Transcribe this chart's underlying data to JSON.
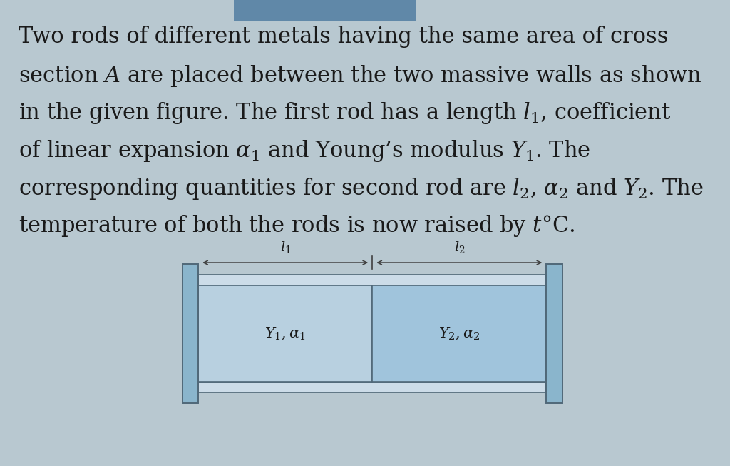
{
  "bg_color_top": "#9ab5c4",
  "bg_color_main": "#b8c8d0",
  "bg_color_bottom": "#c8cfc8",
  "text_color": "#1a1a1a",
  "paragraph_lines": [
    "Two rods of different metals having the same area of cross",
    "section $A$ are placed between the two massive walls as shown",
    "in the given figure. The first rod has a length $l_1$, coefficient",
    "of linear expansion $\\alpha_1$ and Young’s modulus $Y_1$. The",
    "corresponding quantities for second rod are $l_2$, $\\alpha_2$ and $Y_2$. The",
    "temperature of both the rods is now raised by $t$°C."
  ],
  "wall_color": "#8ab5cc",
  "rod1_color": "#b8d0e0",
  "rod2_color": "#a0c4dc",
  "bar_color": "#ccdce8",
  "rod_outline": "#506878",
  "rod1_label": "$Y_1, \\alpha_1$",
  "rod2_label": "$Y_2, \\alpha_2$",
  "l1_label": "$l_1$",
  "l2_label": "$l_2$",
  "arrow_color": "#404040",
  "fontsize_text": 22,
  "fontsize_label": 15,
  "fontsize_dim": 14
}
